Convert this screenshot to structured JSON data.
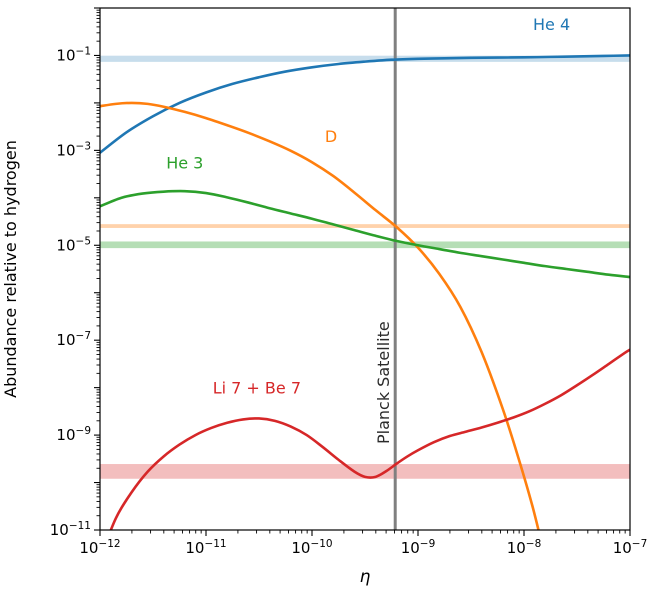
{
  "chart_data": {
    "type": "line",
    "title": "",
    "xlabel": "η",
    "ylabel": "Abundance relative to hydrogen",
    "x_scale": "log",
    "y_scale": "log",
    "xlim_log10": [
      -12,
      -7
    ],
    "ylim_log10": [
      -11,
      0
    ],
    "x_ticks_log10": [
      -12,
      -11,
      -10,
      -9,
      -8,
      -7
    ],
    "y_tick_labels_log10": [
      -1,
      -3,
      -5,
      -7,
      -9,
      -11
    ],
    "y_decades_log10": [
      0,
      -1,
      -2,
      -3,
      -4,
      -5,
      -6,
      -7,
      -8,
      -9,
      -10,
      -11
    ],
    "axis_color": "#000000",
    "series": [
      {
        "name": "He 4",
        "color": "#1f77b4",
        "points_log10": [
          [
            -12,
            -3.05
          ],
          [
            -11.75,
            -2.62
          ],
          [
            -11.5,
            -2.28
          ],
          [
            -11.25,
            -2.0
          ],
          [
            -11,
            -1.78
          ],
          [
            -10.75,
            -1.6
          ],
          [
            -10.5,
            -1.46
          ],
          [
            -10.25,
            -1.34
          ],
          [
            -10,
            -1.25
          ],
          [
            -9.75,
            -1.18
          ],
          [
            -9.5,
            -1.13
          ],
          [
            -9.25,
            -1.09
          ],
          [
            -9,
            -1.07
          ],
          [
            -8.75,
            -1.06
          ],
          [
            -8.5,
            -1.05
          ],
          [
            -8.25,
            -1.045
          ],
          [
            -8,
            -1.04
          ],
          [
            -7.75,
            -1.03
          ],
          [
            -7.5,
            -1.02
          ],
          [
            -7.25,
            -1.01
          ],
          [
            -7,
            -1.0
          ]
        ]
      },
      {
        "name": "D",
        "color": "#ff7f0e",
        "points_log10": [
          [
            -12,
            -2.07
          ],
          [
            -11.85,
            -2.02
          ],
          [
            -11.7,
            -2.0
          ],
          [
            -11.55,
            -2.02
          ],
          [
            -11.4,
            -2.08
          ],
          [
            -11.2,
            -2.19
          ],
          [
            -11,
            -2.32
          ],
          [
            -10.8,
            -2.47
          ],
          [
            -10.6,
            -2.63
          ],
          [
            -10.4,
            -2.81
          ],
          [
            -10.2,
            -3.01
          ],
          [
            -10,
            -3.25
          ],
          [
            -9.8,
            -3.54
          ],
          [
            -9.6,
            -3.89
          ],
          [
            -9.4,
            -4.26
          ],
          [
            -9.2,
            -4.62
          ],
          [
            -9,
            -5.05
          ],
          [
            -8.8,
            -5.6
          ],
          [
            -8.6,
            -6.3
          ],
          [
            -8.4,
            -7.25
          ],
          [
            -8.2,
            -8.45
          ],
          [
            -8.05,
            -9.5
          ],
          [
            -7.92,
            -10.5
          ],
          [
            -7.82,
            -11.4
          ]
        ]
      },
      {
        "name": "He 3",
        "color": "#2ca02c",
        "points_log10": [
          [
            -12,
            -4.18
          ],
          [
            -11.8,
            -4.0
          ],
          [
            -11.6,
            -3.91
          ],
          [
            -11.4,
            -3.87
          ],
          [
            -11.2,
            -3.86
          ],
          [
            -11,
            -3.9
          ],
          [
            -10.8,
            -3.99
          ],
          [
            -10.6,
            -4.1
          ],
          [
            -10.4,
            -4.22
          ],
          [
            -10.2,
            -4.33
          ],
          [
            -10,
            -4.44
          ],
          [
            -9.8,
            -4.56
          ],
          [
            -9.6,
            -4.68
          ],
          [
            -9.4,
            -4.8
          ],
          [
            -9.2,
            -4.91
          ],
          [
            -9,
            -5.0
          ],
          [
            -8.8,
            -5.08
          ],
          [
            -8.6,
            -5.16
          ],
          [
            -8.4,
            -5.23
          ],
          [
            -8.2,
            -5.3
          ],
          [
            -8,
            -5.37
          ],
          [
            -7.8,
            -5.44
          ],
          [
            -7.6,
            -5.5
          ],
          [
            -7.4,
            -5.56
          ],
          [
            -7.2,
            -5.62
          ],
          [
            -7,
            -5.67
          ]
        ]
      },
      {
        "name": "Li 7 + Be 7",
        "color": "#d62728",
        "points_log10": [
          [
            -12,
            -11.6
          ],
          [
            -11.85,
            -10.75
          ],
          [
            -11.7,
            -10.2
          ],
          [
            -11.55,
            -9.77
          ],
          [
            -11.4,
            -9.45
          ],
          [
            -11.25,
            -9.2
          ],
          [
            -11.1,
            -9.0
          ],
          [
            -10.95,
            -8.85
          ],
          [
            -10.8,
            -8.74
          ],
          [
            -10.65,
            -8.67
          ],
          [
            -10.5,
            -8.65
          ],
          [
            -10.35,
            -8.7
          ],
          [
            -10.2,
            -8.82
          ],
          [
            -10.05,
            -9.0
          ],
          [
            -9.9,
            -9.25
          ],
          [
            -9.75,
            -9.52
          ],
          [
            -9.6,
            -9.77
          ],
          [
            -9.5,
            -9.88
          ],
          [
            -9.4,
            -9.88
          ],
          [
            -9.3,
            -9.76
          ],
          [
            -9.2,
            -9.6
          ],
          [
            -9.1,
            -9.45
          ],
          [
            -9,
            -9.32
          ],
          [
            -8.85,
            -9.15
          ],
          [
            -8.7,
            -9.02
          ],
          [
            -8.55,
            -8.93
          ],
          [
            -8.4,
            -8.84
          ],
          [
            -8.25,
            -8.74
          ],
          [
            -8.1,
            -8.63
          ],
          [
            -7.95,
            -8.5
          ],
          [
            -7.8,
            -8.34
          ],
          [
            -7.65,
            -8.16
          ],
          [
            -7.5,
            -7.95
          ],
          [
            -7.35,
            -7.73
          ],
          [
            -7.2,
            -7.5
          ],
          [
            -7.05,
            -7.27
          ],
          [
            -7,
            -7.2
          ]
        ]
      }
    ],
    "observation_bands": [
      {
        "for": "He 4",
        "color": "#1f77b4",
        "alpha": 0.25,
        "y_log10": [
          -1.135,
          -1.005
        ]
      },
      {
        "for": "D",
        "color": "#ff7f0e",
        "alpha": 0.35,
        "y_log10": [
          -4.635,
          -4.555
        ]
      },
      {
        "for": "He 3",
        "color": "#2ca02c",
        "alpha": 0.35,
        "y_log10": [
          -5.06,
          -4.92
        ]
      },
      {
        "for": "Li 7 + Be 7",
        "color": "#d62728",
        "alpha": 0.3,
        "y_log10": [
          -9.92,
          -9.61
        ]
      }
    ],
    "vline": {
      "x_log10": -9.215,
      "color": "#808080",
      "label": "Planck Satellite",
      "label_color": "#2b2b2b"
    },
    "annotations": [
      {
        "text": "He 4",
        "color": "#1f77b4",
        "x_log10": -7.74,
        "y_log10": -0.46
      },
      {
        "text": "D",
        "color": "#ff7f0e",
        "x_log10": -9.82,
        "y_log10": -2.82
      },
      {
        "text": "He 3",
        "color": "#2ca02c",
        "x_log10": -11.2,
        "y_log10": -3.38
      },
      {
        "text": "Li 7 + Be 7",
        "color": "#d62728",
        "x_log10": -10.52,
        "y_log10": -8.12
      }
    ],
    "legend": "labels drawn on curves",
    "grid": false
  }
}
